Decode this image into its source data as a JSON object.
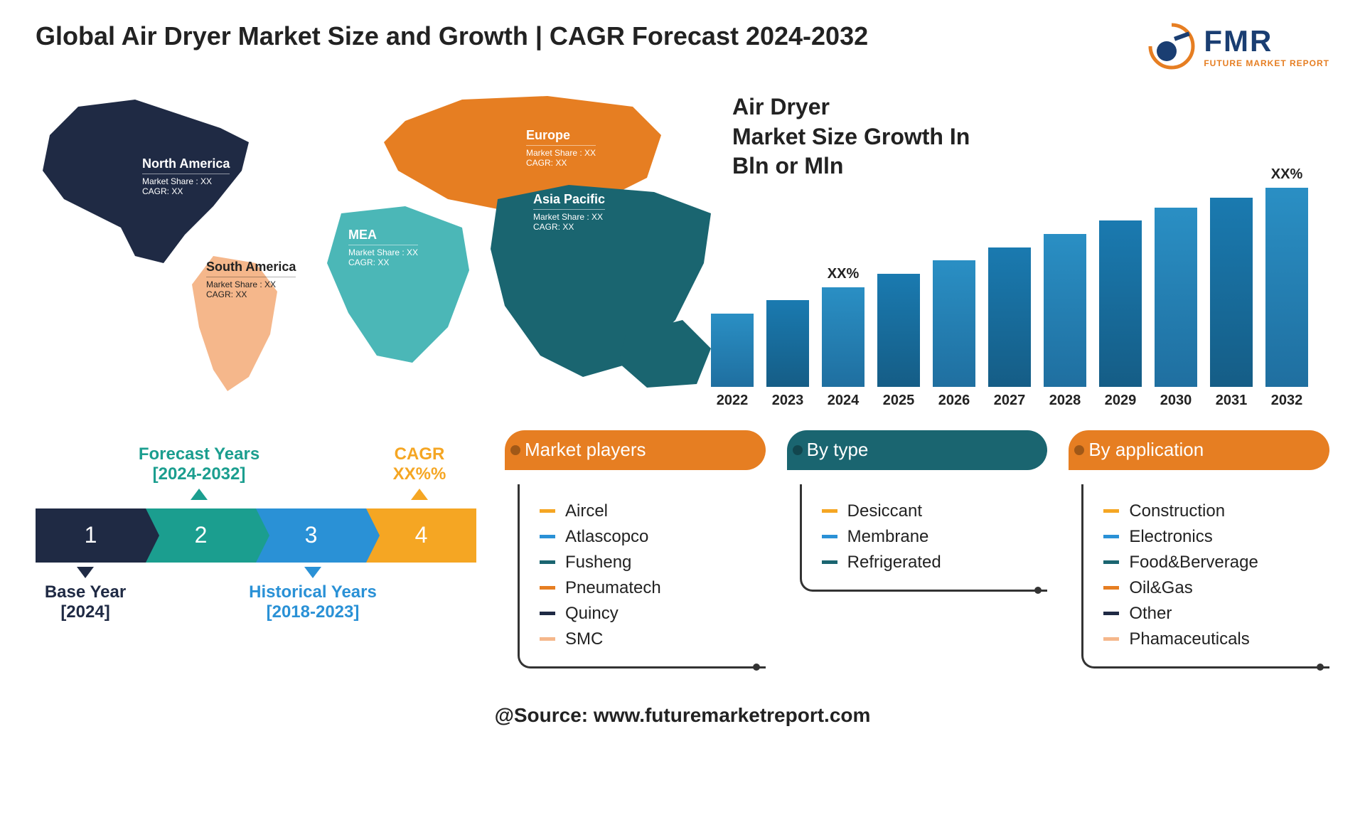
{
  "title": "Global Air Dryer  Market Size and Growth | CAGR Forecast 2024-2032",
  "logo": {
    "main": "FMR",
    "sub": "FUTURE MARKET REPORT"
  },
  "colors": {
    "navy": "#1f2a44",
    "orange": "#e67e22",
    "teal": "#4bb7b7",
    "darkteal": "#1a6570",
    "peach": "#f5b78b",
    "bar1": "#2a8fc4",
    "bar2": "#1a7ab0",
    "seg_teal": "#1b9e8f",
    "seg_blue": "#2a91d6",
    "seg_gold": "#f5a623"
  },
  "map": {
    "regions": [
      {
        "name": "North America",
        "share": "Market Share : XX",
        "cagr": "CAGR: XX",
        "color": "#1f2a44"
      },
      {
        "name": "South America",
        "share": "Market Share : XX",
        "cagr": "CAGR: XX",
        "color": "#f5b78b"
      },
      {
        "name": "MEA",
        "share": "Market Share : XX",
        "cagr": "CAGR: XX",
        "color": "#4bb7b7"
      },
      {
        "name": "Europe",
        "share": "Market Share : XX",
        "cagr": "CAGR: XX",
        "color": "#e67e22"
      },
      {
        "name": "Asia Pacific",
        "share": "Market Share : XX",
        "cagr": "CAGR: XX",
        "color": "#1a6570"
      }
    ]
  },
  "chart": {
    "title_l1": "Air Dryer",
    "title_l2": "Market Size Growth In",
    "title_l3": "Bln or Mln",
    "years": [
      "2022",
      "2023",
      "2024",
      "2025",
      "2026",
      "2027",
      "2028",
      "2029",
      "2030",
      "2031",
      "2032"
    ],
    "values": [
      110,
      130,
      150,
      170,
      190,
      210,
      230,
      250,
      270,
      285,
      300
    ],
    "max": 300,
    "anno_2024": "XX%",
    "anno_2032": "XX%"
  },
  "timeline": {
    "forecast": {
      "label": "Forecast Years",
      "range": "[2024-2032]",
      "color": "#1b9e8f"
    },
    "cagr": {
      "label": "CAGR",
      "value": "XX%%",
      "color": "#f5a623"
    },
    "base": {
      "label": "Base Year",
      "range": "[2024]",
      "color": "#1f2a44"
    },
    "historical": {
      "label": "Historical Years",
      "range": "[2018-2023]",
      "color": "#2a91d6"
    },
    "segments": [
      "1",
      "2",
      "3",
      "4"
    ]
  },
  "categories": [
    {
      "title": "Market players",
      "header_color": "#e67e22",
      "items": [
        {
          "text": "Aircel",
          "dash": "#f5a623"
        },
        {
          "text": "Atlascopco",
          "dash": "#2a91d6"
        },
        {
          "text": "Fusheng",
          "dash": "#1a6570"
        },
        {
          "text": "Pneumatech",
          "dash": "#e67e22"
        },
        {
          "text": "Quincy",
          "dash": "#1f2a44"
        },
        {
          "text": "SMC",
          "dash": "#f5b78b"
        }
      ]
    },
    {
      "title": "By type",
      "header_color": "#1a6570",
      "items": [
        {
          "text": "Desiccant",
          "dash": "#f5a623"
        },
        {
          "text": "Membrane",
          "dash": "#2a91d6"
        },
        {
          "text": "Refrigerated",
          "dash": "#1a6570"
        }
      ]
    },
    {
      "title": "By application",
      "header_color": "#e67e22",
      "items": [
        {
          "text": "Construction",
          "dash": "#f5a623"
        },
        {
          "text": "Electronics",
          "dash": "#2a91d6"
        },
        {
          "text": "Food&Berverage",
          "dash": "#1a6570"
        },
        {
          "text": "Oil&Gas",
          "dash": "#e67e22"
        },
        {
          "text": "Other",
          "dash": "#1f2a44"
        },
        {
          "text": "Phamaceuticals",
          "dash": "#f5b78b"
        }
      ]
    }
  ],
  "source": "@Source: www.futuremarketreport.com"
}
